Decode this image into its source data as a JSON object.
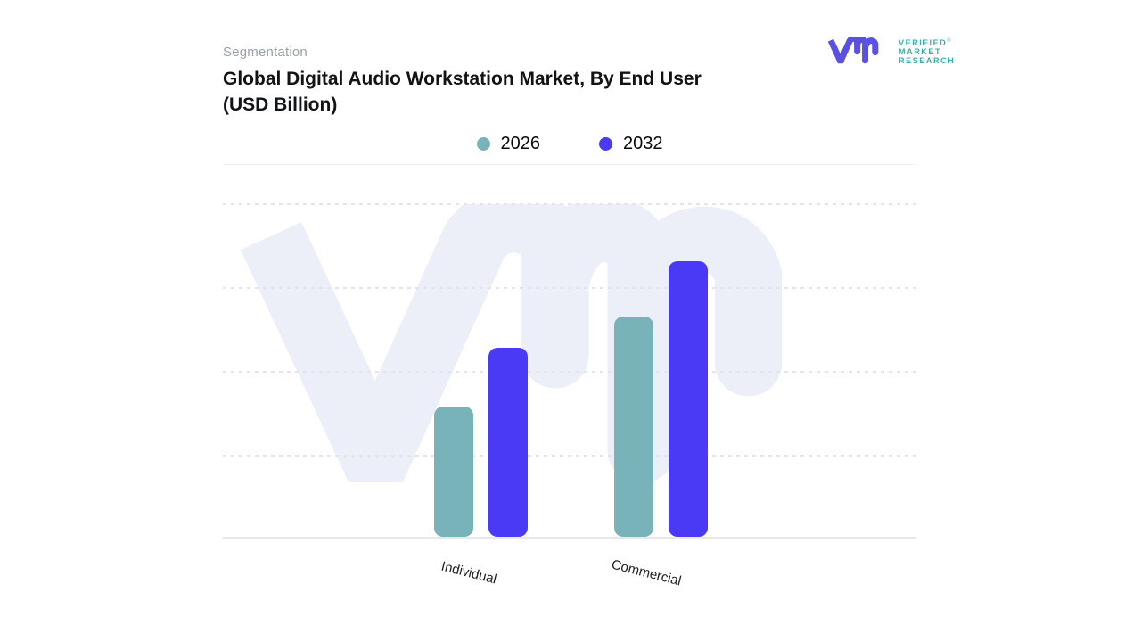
{
  "header": {
    "eyebrow": "Segmentation",
    "title": "Global Digital Audio Workstation Market, By End User (USD Billion)"
  },
  "logo": {
    "monogram_icon": "vmr-monogram",
    "line1": "VERIFIED",
    "registered_mark": "®",
    "line2": "MARKET",
    "line3": "RESEARCH",
    "monogram_color": "#5a50e2",
    "text_color": "#36aea6"
  },
  "legend": {
    "items": [
      {
        "label": "2026",
        "color": "#78b3b9"
      },
      {
        "label": "2032",
        "color": "#4a3af5"
      }
    ],
    "position": "top-center"
  },
  "chart_data": {
    "type": "bar",
    "title": "Global Digital Audio Workstation Market, By End User (USD Billion)",
    "categories": [
      "Individual",
      "Commercial"
    ],
    "series": [
      {
        "name": "2026",
        "color": "#78b3b9",
        "values": [
          1.55,
          2.63
        ]
      },
      {
        "name": "2032",
        "color": "#4a3af5",
        "values": [
          2.25,
          3.29
        ]
      }
    ],
    "xlabel": "",
    "ylabel": "",
    "ylim": [
      0,
      4
    ],
    "y_tick_labels_visible": false,
    "values_estimated_from_gridlines": true,
    "grid": "dashed horizontal gridlines, solid baseline",
    "legend_position": "top-center",
    "units": "USD Billion",
    "watermark": {
      "name": "vmr-monogram-watermark",
      "color": "#eceef8"
    }
  }
}
